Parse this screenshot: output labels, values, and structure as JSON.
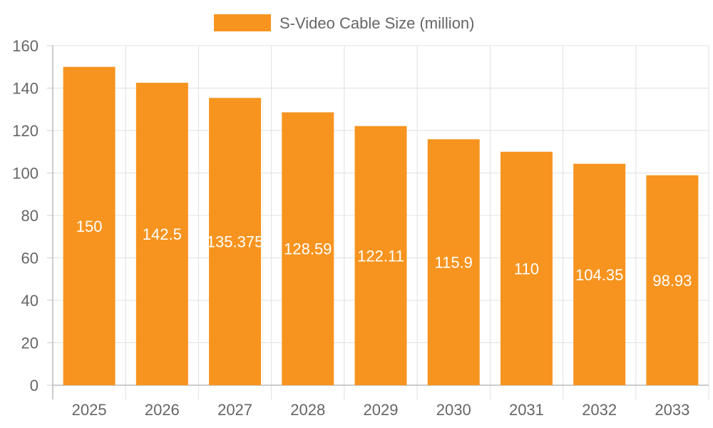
{
  "chart_data": {
    "type": "bar",
    "categories": [
      "2025",
      "2026",
      "2027",
      "2028",
      "2029",
      "2030",
      "2031",
      "2032",
      "2033"
    ],
    "series": [
      {
        "name": "S-Video Cable Size (million)",
        "values": [
          150,
          142.5,
          135.375,
          128.59,
          122.11,
          115.9,
          110,
          104.35,
          98.93
        ],
        "color": "#f7941f"
      }
    ],
    "data_labels": [
      "150",
      "142.5",
      "135.375",
      "128.59",
      "122.11",
      "115.9",
      "110",
      "104.35",
      "98.93"
    ],
    "yticks": [
      "0",
      "20",
      "40",
      "60",
      "80",
      "100",
      "120",
      "140",
      "160"
    ],
    "ylim": [
      0,
      160
    ],
    "grid": true,
    "legend_position": "top-center",
    "xlabel": "",
    "ylabel": ""
  }
}
